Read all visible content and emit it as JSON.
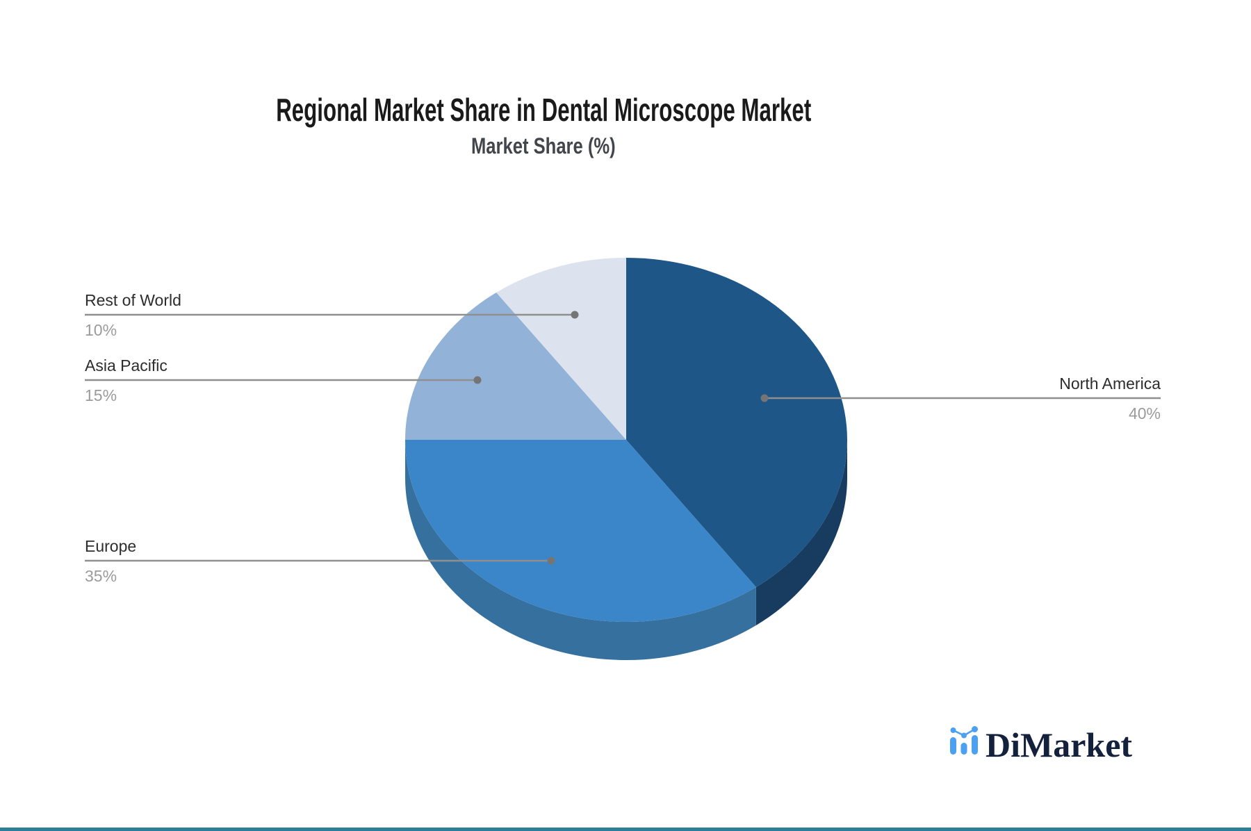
{
  "header": {
    "title": "Regional Market Share in Dental Microscope Market",
    "subtitle": "Market Share (%)"
  },
  "chart_data": {
    "type": "pie",
    "style": "3d-pie",
    "title": "Regional Market Share in Dental Microscope Market",
    "subtitle": "Market Share (%)",
    "unit": "%",
    "direction": "clockwise",
    "start_angle_deg": 0,
    "labels_position": "outside-callout-lines",
    "legend": "none",
    "series": [
      {
        "name": "North America",
        "value": 40,
        "label": "40%",
        "color": "#1D5687",
        "side_color": "#183C60",
        "label_side": "right"
      },
      {
        "name": "Europe",
        "value": 35,
        "label": "35%",
        "color": "#3B86C8",
        "side_color": "#35709F",
        "label_side": "left"
      },
      {
        "name": "Asia Pacific",
        "value": 15,
        "label": "15%",
        "color": "#92B3D7",
        "label_side": "left"
      },
      {
        "name": "Rest of World",
        "value": 10,
        "label": "10%",
        "color": "#DCE3EE",
        "label_side": "left"
      }
    ]
  },
  "branding": {
    "logo_text": "DiMarket",
    "logo_icon": "bar-line-chart-icon",
    "icon_color": "#4BA0F2",
    "text_color": "#14213C"
  },
  "colors": {
    "title": "#1A1A1A",
    "subtitle": "#42464B",
    "label_text": "#2D2D2D",
    "percent_text": "#9B9B9B",
    "connector_line": "#8F8F8F",
    "connector_dot": "#757575",
    "bottom_bar": "#2C7F96",
    "background": "#FFFFFF"
  }
}
